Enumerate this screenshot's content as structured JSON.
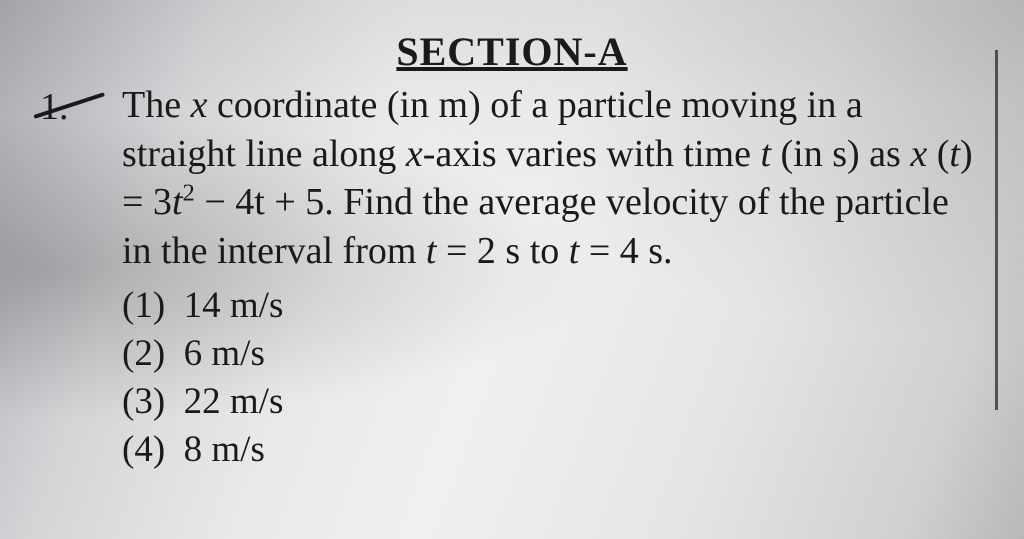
{
  "section_title": "SECTION-A",
  "question": {
    "number": "1.",
    "body_html": "The <span class='ital'>x</span> coordinate (in m) of a particle moving in a straight line along <span class='ital'>x</span>-axis varies with time <span class='ital'>t</span> (in s) as <span class='ital'>x</span> (<span class='ital'>t</span>) = 3<span class='ital'>t</span><sup>2</sup> − 4t + 5. Find the average velocity of the particle in the interval from <span class='ital'>t</span> = 2 s to <span class='ital'>t</span> = 4 s.",
    "options": [
      {
        "label": "(1)",
        "text": "14 m/s"
      },
      {
        "label": "(2)",
        "text": "6 m/s"
      },
      {
        "label": "(3)",
        "text": "22 m/s"
      },
      {
        "label": "(4)",
        "text": "8 m/s"
      }
    ]
  }
}
